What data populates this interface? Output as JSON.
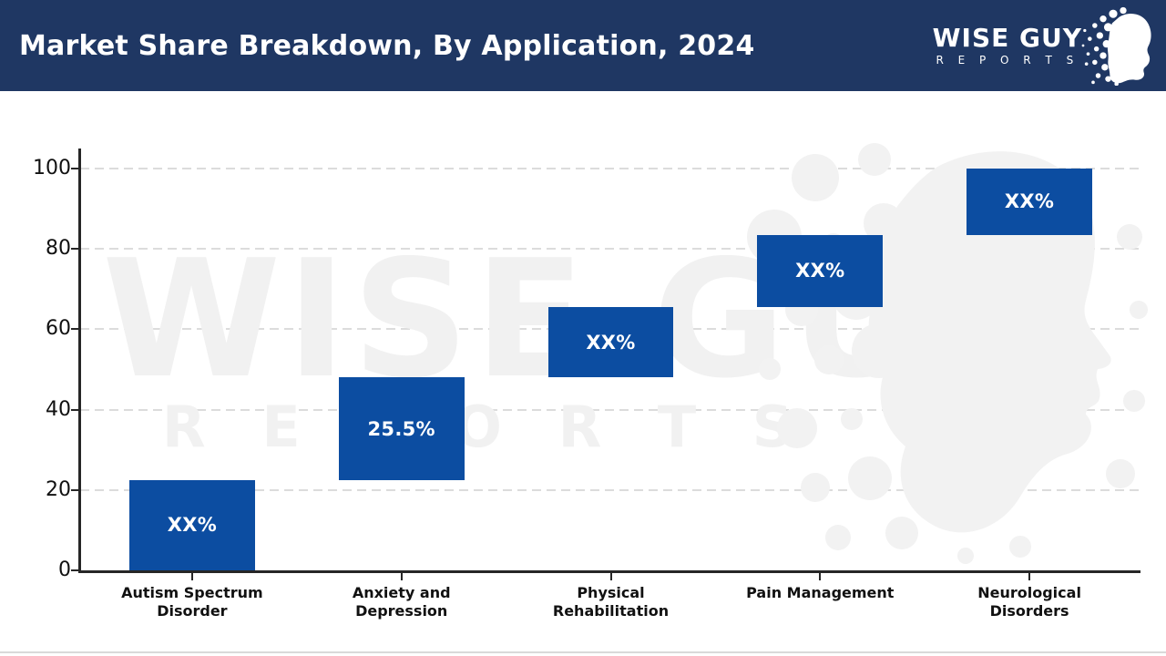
{
  "header": {
    "title": "Market Share Breakdown, By Application, 2024",
    "brand_line1": "WISE GUY",
    "brand_line2": "R E P O R T S"
  },
  "watermark": {
    "line1": "WISE GUY",
    "line2": "R E P O R T S"
  },
  "chart_data": {
    "type": "bar",
    "subtype": "waterfall-floating-segments",
    "title": "Market Share Breakdown, By Application, 2024",
    "categories": [
      "Autism Spectrum\nDisorder",
      "Anxiety and\nDepression",
      "Physical\nRehabilitation",
      "Pain Management",
      "Neurological\nDisorders"
    ],
    "segments": [
      {
        "category": "Autism Spectrum Disorder",
        "label": "XX%",
        "start": 0,
        "end": 22.5
      },
      {
        "category": "Anxiety and Depression",
        "label": "25.5%",
        "start": 22.5,
        "end": 48
      },
      {
        "category": "Physical Rehabilitation",
        "label": "XX%",
        "start": 48,
        "end": 65.5
      },
      {
        "category": "Pain Management",
        "label": "XX%",
        "start": 65.5,
        "end": 83.5
      },
      {
        "category": "Neurological Disorders",
        "label": "XX%",
        "start": 83.5,
        "end": 100
      }
    ],
    "xlabel": "",
    "ylabel": "",
    "ylim": [
      0,
      105
    ],
    "yticks": [
      0,
      20,
      40,
      60,
      80,
      100
    ],
    "grid": "horizontal-dashed",
    "legend": "none",
    "colors": {
      "header_bg": "#1f3763",
      "bar": "#0c4da1",
      "bar_label": "#ffffff",
      "axis": "#262626",
      "tick_label": "#111111",
      "gridline": "#dcdcdc",
      "watermark": "#f1f1f1"
    }
  }
}
